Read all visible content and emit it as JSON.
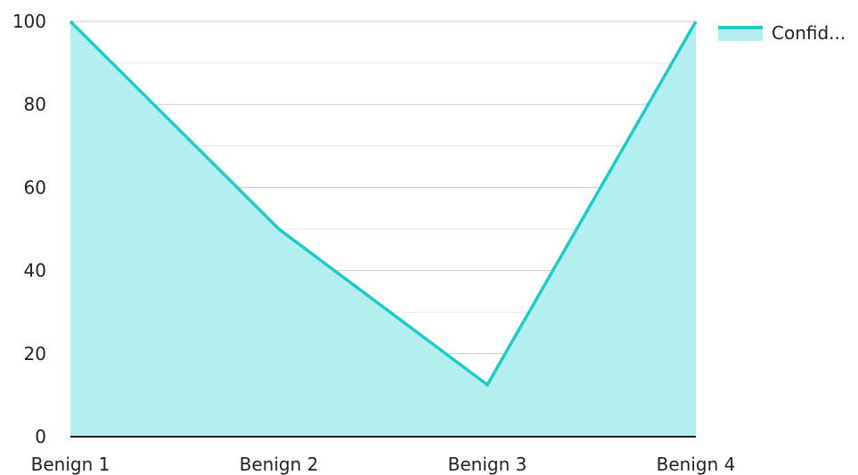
{
  "chart_data": {
    "type": "area",
    "title": "",
    "xlabel": "",
    "ylabel": "",
    "categories": [
      "Benign 1",
      "Benign 2",
      "Benign 3",
      "Benign 4"
    ],
    "series": [
      {
        "name": "Confid...",
        "values": [
          100,
          50,
          12.5,
          100
        ],
        "line_color": "#1ecbcb",
        "fill_color": "#b3efee"
      }
    ],
    "ylim": [
      0,
      100
    ],
    "yticks": [
      "0",
      "20",
      "40",
      "60",
      "80",
      "100"
    ],
    "ytick_values": [
      0,
      20,
      40,
      60,
      80,
      100
    ],
    "grid": true,
    "legend_position": "top-right"
  }
}
